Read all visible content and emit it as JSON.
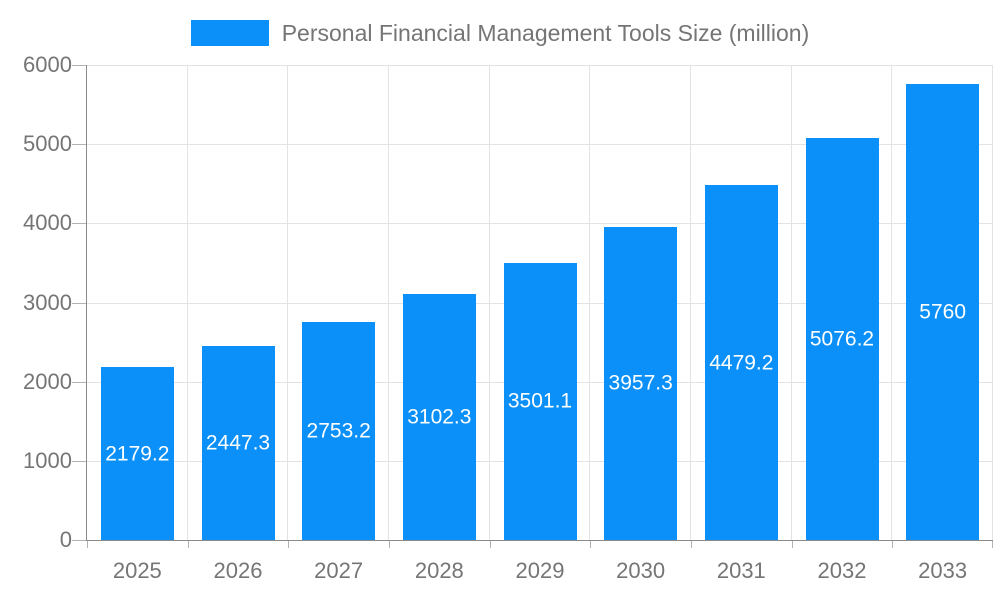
{
  "chart_data": {
    "type": "bar",
    "title": "Personal Financial Management Tools Size (million)",
    "categories": [
      "2025",
      "2026",
      "2027",
      "2028",
      "2029",
      "2030",
      "2031",
      "2032",
      "2033"
    ],
    "series": [
      {
        "name": "Personal Financial Management Tools Size (million)",
        "values": [
          2179.2,
          2447.3,
          2753.2,
          3102.3,
          3501.1,
          3957.3,
          4479.2,
          5076.2,
          5760
        ],
        "value_labels": [
          "2179.2",
          "2447.3",
          "2753.2",
          "3102.3",
          "3501.1",
          "3957.3",
          "4479.2",
          "5076.2",
          "5760"
        ]
      }
    ],
    "xlabel": "",
    "ylabel": "",
    "ylim": [
      0,
      6000
    ],
    "y_ticks": [
      "0",
      "1000",
      "2000",
      "3000",
      "4000",
      "5000",
      "6000"
    ],
    "grid": true,
    "legend_position": "top",
    "colors": {
      "bar": "#0b90f9",
      "bar_value_text": "#ffffff",
      "axis_text": "#757575",
      "legend_text": "#757575",
      "grid_line": "#e3e3e3",
      "axis_line": "#8a8a8a",
      "tick_mark": "#b3b3b3",
      "background": "#ffffff"
    }
  }
}
